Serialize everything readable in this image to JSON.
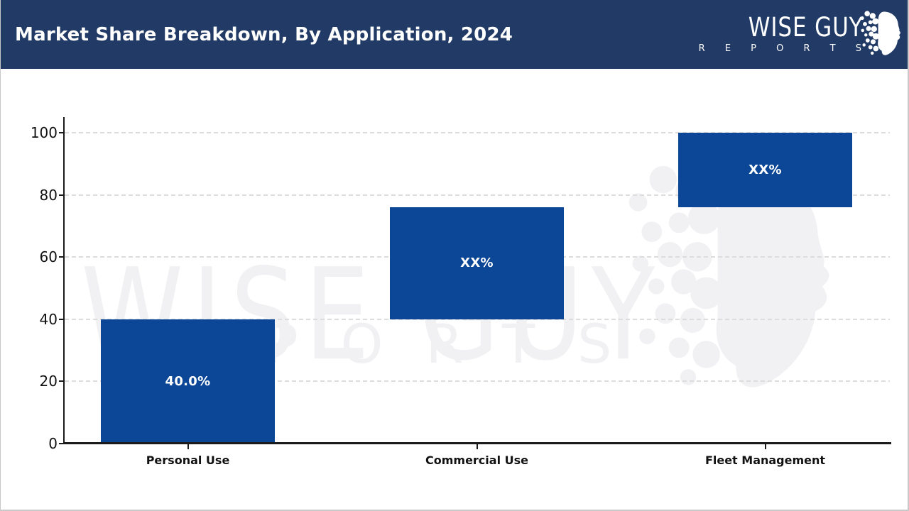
{
  "header": {
    "title": "Market Share Breakdown, By Application, 2024",
    "bg_color": "#213a66",
    "logo": {
      "wordmark": "WISE GUY",
      "subtext": "R E P O R T S"
    }
  },
  "watermark": {
    "line1": "WISE GUY",
    "line2": "REPORTS"
  },
  "chart_data": {
    "type": "bar",
    "subtype": "floating-waterfall",
    "title": "Market Share Breakdown, By Application, 2024",
    "categories": [
      "Personal Use",
      "Commercial Use",
      "Fleet Management"
    ],
    "bars": [
      {
        "category": "Personal Use",
        "start": 0,
        "end": 40,
        "label": "40.0%"
      },
      {
        "category": "Commercial Use",
        "start": 40,
        "end": 76,
        "label": "XX%"
      },
      {
        "category": "Fleet Management",
        "start": 76,
        "end": 100,
        "label": "XX%"
      }
    ],
    "xlabel": "",
    "ylabel": "",
    "ylim": [
      0,
      100
    ],
    "yticks": [
      0,
      20,
      40,
      60,
      80,
      100
    ],
    "grid": "horizontal-dashed",
    "legend": "none",
    "bar_color": "#0b4796",
    "grid_color": "#dcdcdc",
    "axis_color": "#1a1a1a"
  }
}
